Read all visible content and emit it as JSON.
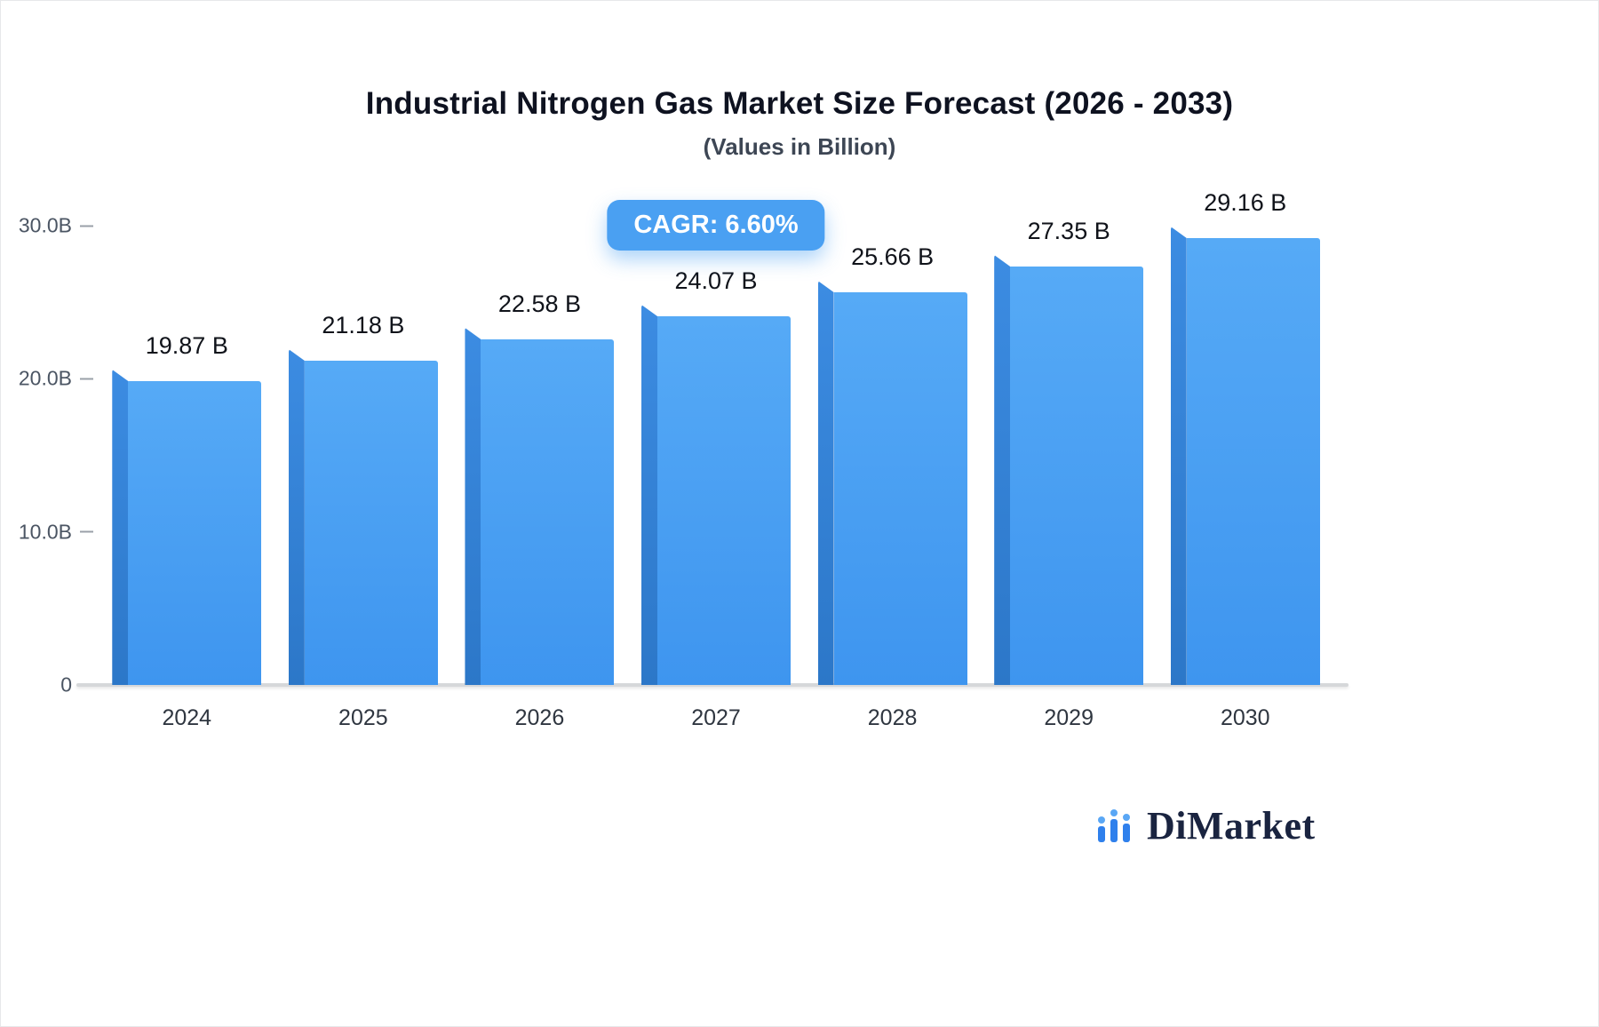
{
  "title": "Industrial Nitrogen Gas Market Size Forecast (2026 - 2033)",
  "subtitle": "(Values in Billion)",
  "badge": {
    "label": "CAGR: 6.60%",
    "bg_color": "#4aa0f2",
    "text_color": "#ffffff"
  },
  "chart_data": {
    "type": "bar",
    "categories": [
      "2024",
      "2025",
      "2026",
      "2027",
      "2028",
      "2029",
      "2030"
    ],
    "values": [
      19.87,
      21.18,
      22.58,
      24.07,
      25.66,
      27.35,
      29.16
    ],
    "value_labels": [
      "19.87 B",
      "21.18 B",
      "22.58 B",
      "24.07 B",
      "25.66 B",
      "27.35 B",
      "29.16 B"
    ],
    "title": "Industrial Nitrogen Gas Market Size Forecast (2026 - 2033)",
    "subtitle": "(Values in Billion)",
    "xlabel": "",
    "ylabel": "",
    "ylim": [
      0,
      30
    ],
    "yticks": [
      {
        "label": "30.0B",
        "value": 30
      },
      {
        "label": "20.0B",
        "value": 20
      },
      {
        "label": "10.0B",
        "value": 10
      },
      {
        "label": "0",
        "value": 0
      }
    ],
    "grid": false,
    "legend": false,
    "bar_color": "#44A0F4",
    "bar_side_color": "#2E7FD4"
  },
  "logo": {
    "text": "DiMarket",
    "icon": "mini-bar-chart-icon",
    "text_color": "#1a2440",
    "accent_color": "#2f80ec"
  }
}
